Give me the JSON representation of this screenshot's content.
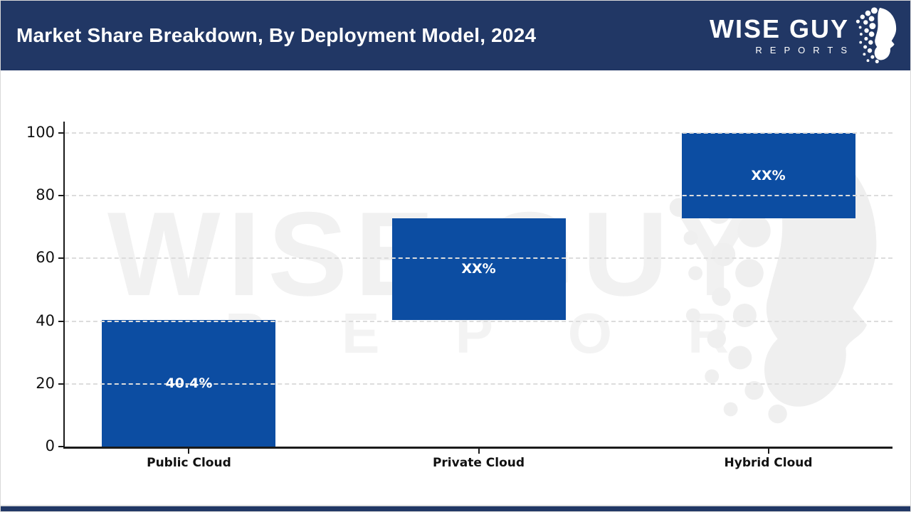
{
  "header": {
    "title": "Market Share Breakdown, By Deployment Model, 2024",
    "bg_color": "#213765",
    "logo": {
      "line1": "WISE GUY",
      "line2": "REPORTS"
    }
  },
  "watermark": {
    "line1": "WISE GUY",
    "line2": "R E P O R T S"
  },
  "chart_data": {
    "type": "bar",
    "subtype": "floating-waterfall",
    "title": "Market Share Breakdown, By Deployment Model, 2024",
    "categories": [
      "Public Cloud",
      "Private Cloud",
      "Hybrid Cloud"
    ],
    "segments": [
      {
        "category": "Public Cloud",
        "start": 0,
        "end": 40.4,
        "label": "40.4%"
      },
      {
        "category": "Private Cloud",
        "start": 40.4,
        "end": 72.9,
        "label": "XX%"
      },
      {
        "category": "Hybrid Cloud",
        "start": 72.9,
        "end": 100,
        "label": "XX%"
      }
    ],
    "ylim": [
      0,
      100
    ],
    "yticks": [
      0,
      20,
      40,
      60,
      80,
      100
    ],
    "grid": "horizontal-dashed",
    "legend": "none",
    "bar_color": "#0C4DA2",
    "grid_color": "#dcdcdc",
    "axis_color": "#1a1a1a"
  }
}
